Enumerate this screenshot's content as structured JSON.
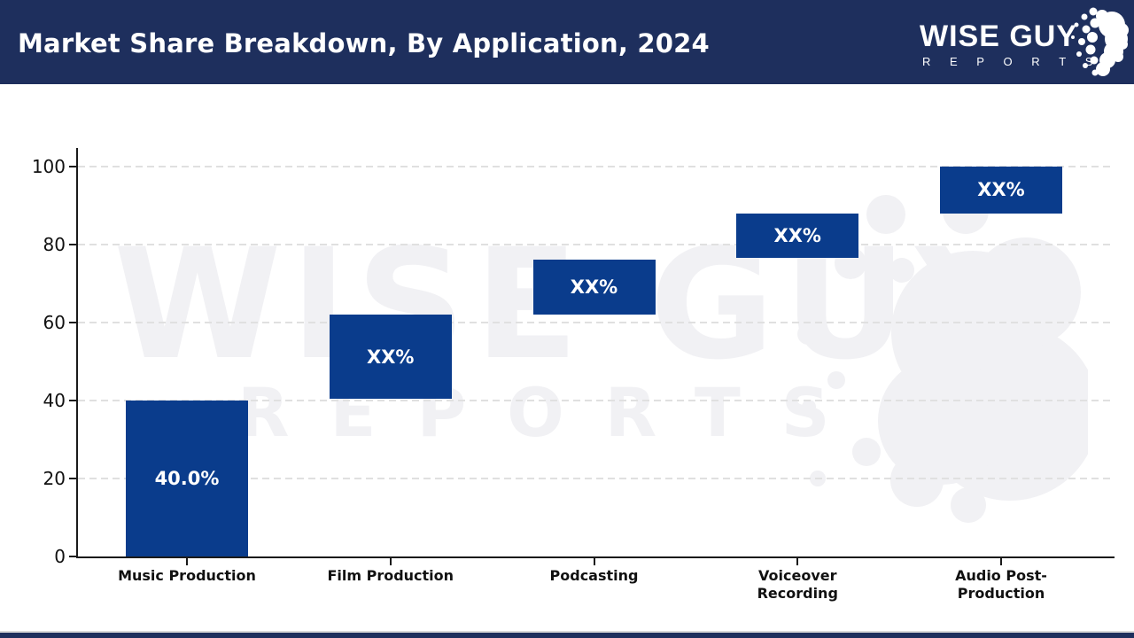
{
  "header": {
    "title": "Market Share Breakdown, By Application, 2024",
    "logo": {
      "line1": "WISE GUY",
      "line2": "REPORTS"
    }
  },
  "watermark": {
    "line1": "WISE GUY",
    "line2": "REPORTS"
  },
  "chart_data": {
    "type": "bar",
    "subtype": "waterfall",
    "title": "Market Share Breakdown, By Application, 2024",
    "categories": [
      "Music Production",
      "Film Production",
      "Podcasting",
      "Voiceover Recording",
      "Audio Post-Production"
    ],
    "category_label_lines": [
      [
        "Music Production"
      ],
      [
        "Film Production"
      ],
      [
        "Podcasting"
      ],
      [
        "Voiceover",
        "Recording"
      ],
      [
        "Audio Post-",
        "Production"
      ]
    ],
    "series": [
      {
        "name": "Market Share (%)",
        "segments": [
          {
            "category": "Music Production",
            "start": 0,
            "end": 40,
            "label": "40.0%"
          },
          {
            "category": "Film Production",
            "start": 40.5,
            "end": 62,
            "label": "XX%"
          },
          {
            "category": "Podcasting",
            "start": 62,
            "end": 76.2,
            "label": "XX%"
          },
          {
            "category": "Voiceover Recording",
            "start": 76.5,
            "end": 88,
            "label": "XX%"
          },
          {
            "category": "Audio Post-Production",
            "start": 88,
            "end": 100,
            "label": "XX%"
          }
        ]
      }
    ],
    "ylim": [
      0,
      100
    ],
    "yticks": [
      0,
      20,
      40,
      60,
      80,
      100
    ],
    "xlabel": "",
    "ylabel": "",
    "grid": "horizontal-dashed",
    "legend": "none",
    "bar_color": "#0a3c8c",
    "bar_label_color": "#ffffff",
    "axis_color": "#1a1a1a",
    "tick_label_color": "#111111",
    "header_color": "#1e2f5d"
  }
}
